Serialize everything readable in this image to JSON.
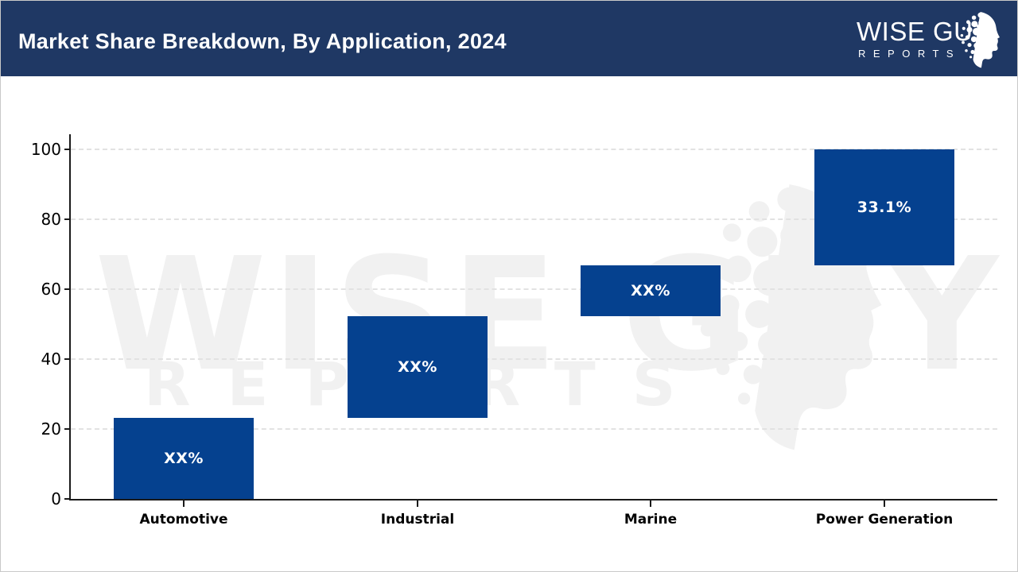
{
  "header": {
    "title": "Market Share Breakdown, By Application, 2024",
    "logo": {
      "line1": "WISE GUY",
      "line2": "REPORTS"
    }
  },
  "watermark": {
    "line1": "WISE GUY",
    "line2": "REPORTS"
  },
  "colors": {
    "header_bg": "#1f3864",
    "bar": "#05418f",
    "bar_label": "#ffffff",
    "watermark": "#f1f1f1",
    "grid": "#e2e2e2",
    "axis": "#1a1a1a"
  },
  "chart_data": {
    "type": "bar",
    "subtype": "waterfall-floating-bars",
    "title": "Market Share Breakdown, By Application, 2024",
    "categories": [
      "Automotive",
      "Industrial",
      "Marine",
      "Power Generation"
    ],
    "segments": [
      {
        "category": "Automotive",
        "start": 0,
        "end": 23.2,
        "value": 23.2,
        "label": "XX%"
      },
      {
        "category": "Industrial",
        "start": 23.2,
        "end": 52.3,
        "value": 29.1,
        "label": "XX%"
      },
      {
        "category": "Marine",
        "start": 52.3,
        "end": 66.9,
        "value": 14.6,
        "label": "XX%"
      },
      {
        "category": "Power Generation",
        "start": 66.9,
        "end": 100,
        "value": 33.1,
        "label": "33.1%"
      }
    ],
    "xlabel": "",
    "ylabel": "",
    "yticks": [
      0,
      20,
      40,
      60,
      80,
      100
    ],
    "ylim": [
      0,
      104.5
    ],
    "grid": "horizontal-dashed",
    "legend": "none",
    "bar_color": "#05418f"
  }
}
